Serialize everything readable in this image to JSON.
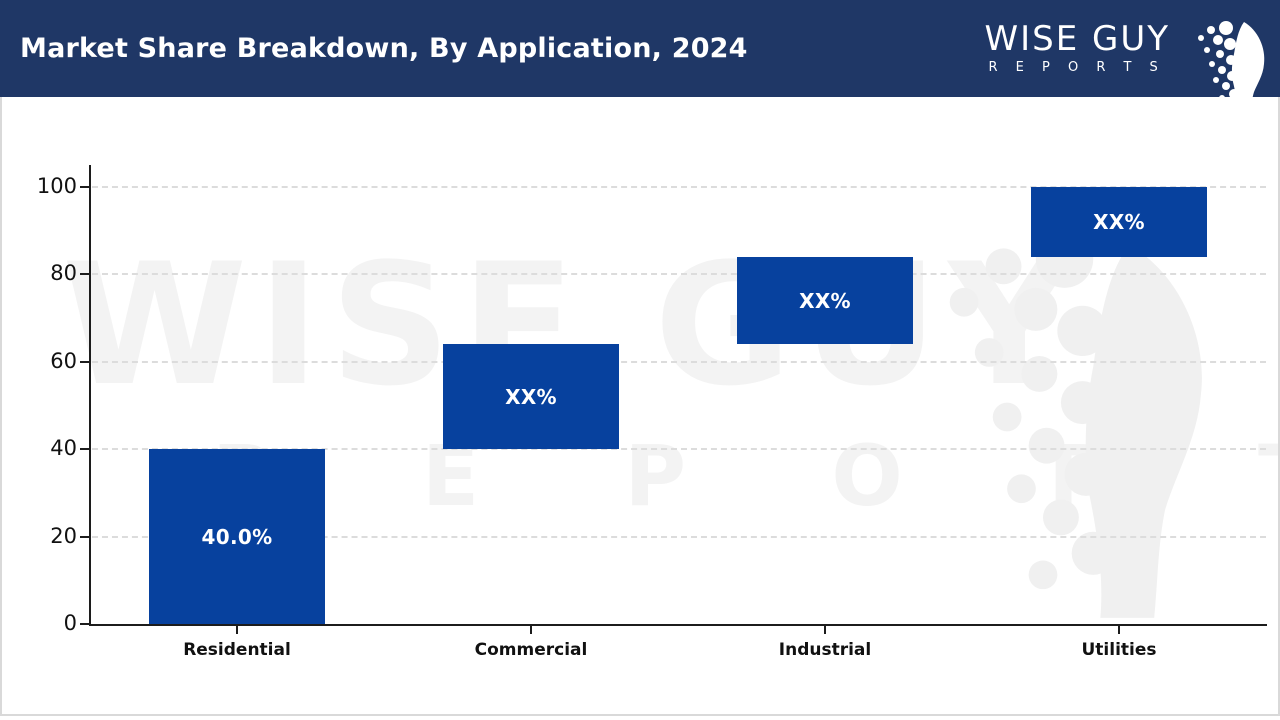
{
  "header": {
    "title": "Market Share Breakdown, By Application, 2024",
    "bg_color": "#1f3766",
    "logo": {
      "name": "WISE GUY",
      "sub": "R E P O R T S"
    }
  },
  "watermark": {
    "line1": "WISE GUY",
    "line2": "R E P O R T S"
  },
  "chart_data": {
    "type": "bar",
    "subtype": "waterfall",
    "title": "Market Share Breakdown, By Application, 2024",
    "categories": [
      "Residential",
      "Commercial",
      "Industrial",
      "Utilities"
    ],
    "segments": [
      {
        "category": "Residential",
        "start": 0,
        "end": 40,
        "label": "40.0%"
      },
      {
        "category": "Commercial",
        "start": 40,
        "end": 64,
        "label": "XX%"
      },
      {
        "category": "Industrial",
        "start": 64,
        "end": 84,
        "label": "XX%"
      },
      {
        "category": "Utilities",
        "start": 84,
        "end": 100,
        "label": "XX%"
      }
    ],
    "ylim": [
      0,
      100
    ],
    "yticks": [
      0,
      20,
      40,
      60,
      80,
      100
    ],
    "xlabel": "",
    "ylabel": "",
    "grid": "horizontal-dashed",
    "legend": false,
    "bar_color": "#07419e",
    "bar_label_color": "#ffffff",
    "gridline_color": "#dcdcdc",
    "axis_color": "#1c1c1c"
  }
}
